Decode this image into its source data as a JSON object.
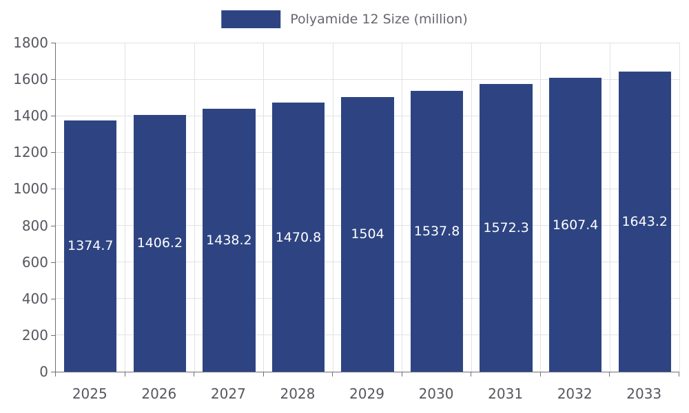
{
  "chart_data": {
    "type": "bar",
    "title": "Polyamide 12 Size (million)",
    "legend_label": "Polyamide 12 Size (million)",
    "categories": [
      "2025",
      "2026",
      "2027",
      "2028",
      "2029",
      "2030",
      "2031",
      "2032",
      "2033"
    ],
    "values": [
      1374.7,
      1406.2,
      1438.2,
      1470.8,
      1504,
      1537.8,
      1572.3,
      1607.4,
      1643.2
    ],
    "xlabel": "",
    "ylabel": "",
    "ylim": [
      0,
      1800
    ],
    "ytick_step": 200,
    "grid": true,
    "legend_position": "top",
    "bar_color": "#2e4482",
    "value_label_color": "#ffffff",
    "tick_label_color": "#56565e",
    "grid_color": "#e2e2e6",
    "axis_color": "#6e6e78",
    "background_color": "#ffffff"
  }
}
